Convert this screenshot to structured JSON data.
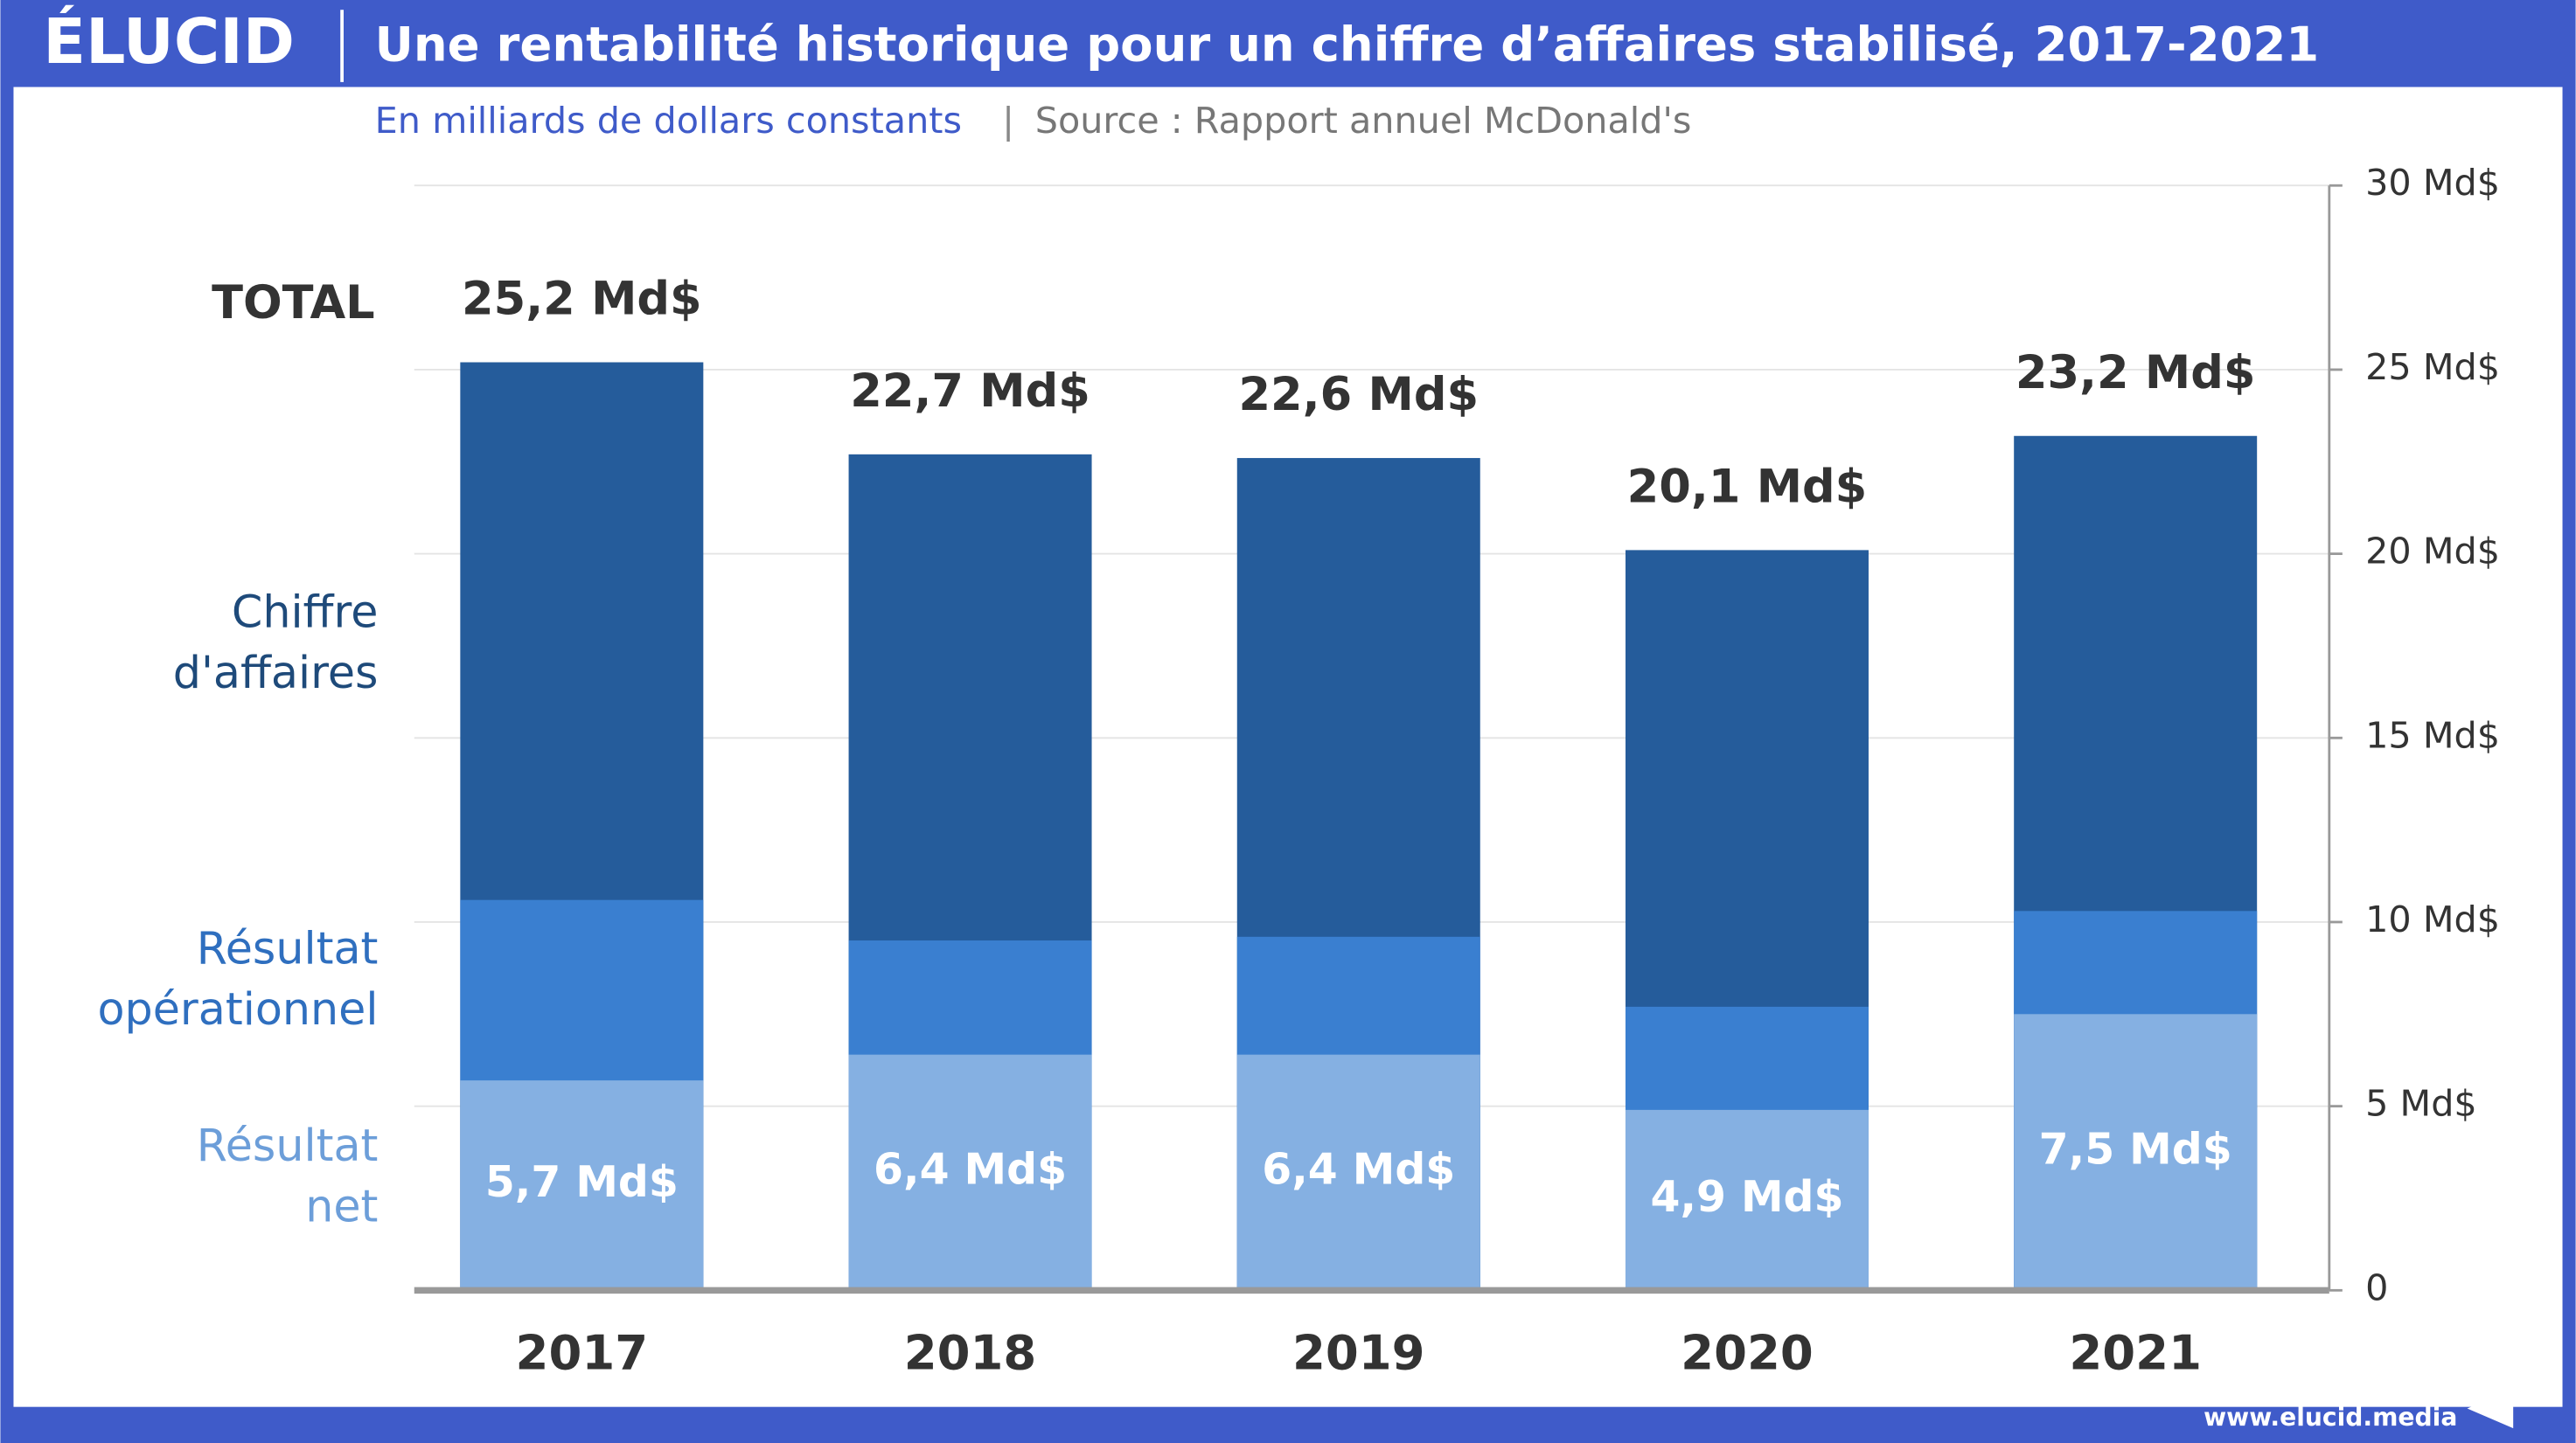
{
  "logo": "ÉLUCID",
  "footer": "www.elucid.media",
  "chart_data": {
    "type": "bar",
    "title": "Une rentabilité historique pour un chiffre d’affaires stabilisé, 2017-2021",
    "subtitle": "En milliards de dollars constants",
    "source": "Source : Rapport annuel McDonald's",
    "total_label": "TOTAL",
    "categories": [
      "2017",
      "2018",
      "2019",
      "2020",
      "2021"
    ],
    "series": [
      {
        "name": "Chiffre d'affaires",
        "color": "#255c9b",
        "values": [
          25.2,
          22.7,
          22.6,
          20.1,
          23.2
        ],
        "value_labels": [
          "25,2 Md$",
          "22,7 Md$",
          "22,6 Md$",
          "20,1 Md$",
          "23,2 Md$"
        ]
      },
      {
        "name": "Résultat opérationnel",
        "color": "#3a7fd0",
        "values": [
          10.6,
          9.5,
          9.6,
          7.7,
          10.3
        ]
      },
      {
        "name": "Résultat net",
        "color": "#85b0e2",
        "values": [
          5.7,
          6.4,
          6.4,
          4.9,
          7.5
        ],
        "value_labels": [
          "5,7 Md$",
          "6,4 Md$",
          "6,4 Md$",
          "4,9 Md$",
          "7,5 Md$"
        ]
      }
    ],
    "ylim": [
      0,
      30
    ],
    "yticks": [
      0,
      {
        "value": 5,
        "label": "5 Md$"
      },
      {
        "value": 10,
        "label": "10 Md$"
      },
      {
        "value": 15,
        "label": "15 Md$"
      },
      {
        "value": 20,
        "label": "20 Md$"
      },
      {
        "value": 25,
        "label": "25 Md$"
      },
      {
        "value": 30,
        "label": "30 Md$"
      }
    ],
    "grid": true
  }
}
